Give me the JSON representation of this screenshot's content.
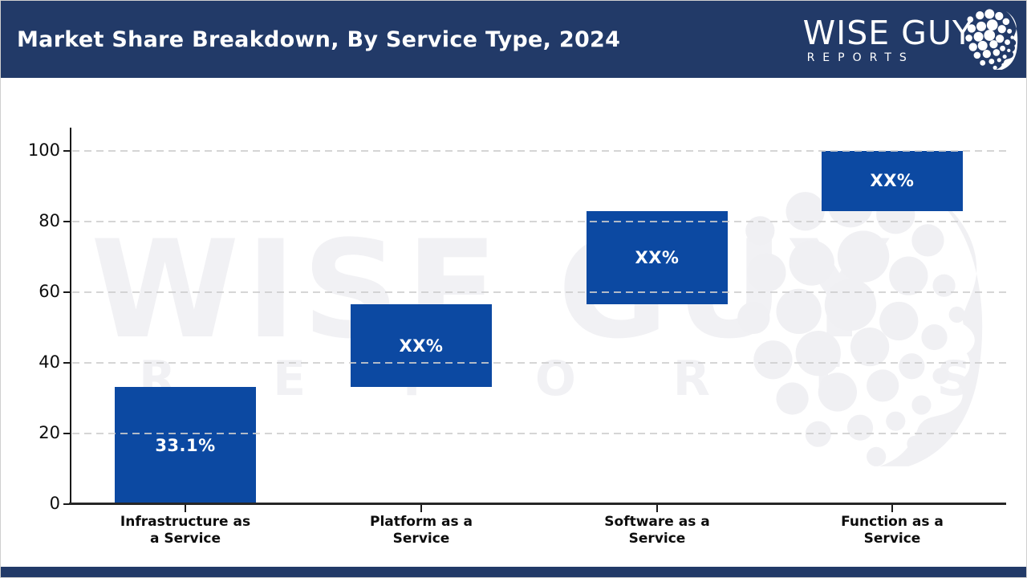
{
  "header": {
    "title": "Market Share Breakdown, By Service Type, 2024",
    "logo": {
      "line1": "WISE GUY",
      "line2": "REPORTS",
      "head_icon": "dotted-face-profile"
    }
  },
  "watermark": {
    "line1": "WISE GUY",
    "line2": "R E P O R T S",
    "head_icon": "dotted-face-profile"
  },
  "colors": {
    "header_bg": "#223a68",
    "footer_bg": "#223a68",
    "bar": "#0c49a2",
    "bar_label": "#ffffff",
    "gridline": "#cecece",
    "axis": "#1a1a1a",
    "watermark": "#f1f1f4"
  },
  "chart_data": {
    "type": "bar",
    "subtype": "floating-segment-waterfall",
    "title": "Market Share Breakdown, By Service Type, 2024",
    "categories": [
      [
        "Infrastructure as",
        "a Service"
      ],
      [
        "Platform as a",
        "Service"
      ],
      [
        "Software as a",
        "Service"
      ],
      [
        "Function as a",
        "Service"
      ]
    ],
    "series": [
      {
        "name": "Market share (%)",
        "segments": [
          {
            "start": 0,
            "end": 33.1,
            "label": "33.1%"
          },
          {
            "start": 33.1,
            "end": 56.5,
            "label": "XX%"
          },
          {
            "start": 56.5,
            "end": 83,
            "label": "XX%"
          },
          {
            "start": 83,
            "end": 100,
            "label": "XX%"
          }
        ]
      }
    ],
    "ylim": [
      0,
      100
    ],
    "yticks": [
      0,
      20,
      40,
      60,
      80,
      100
    ],
    "xlabel": "",
    "ylabel": "",
    "grid": "horizontal-dashed",
    "legend": "none"
  }
}
